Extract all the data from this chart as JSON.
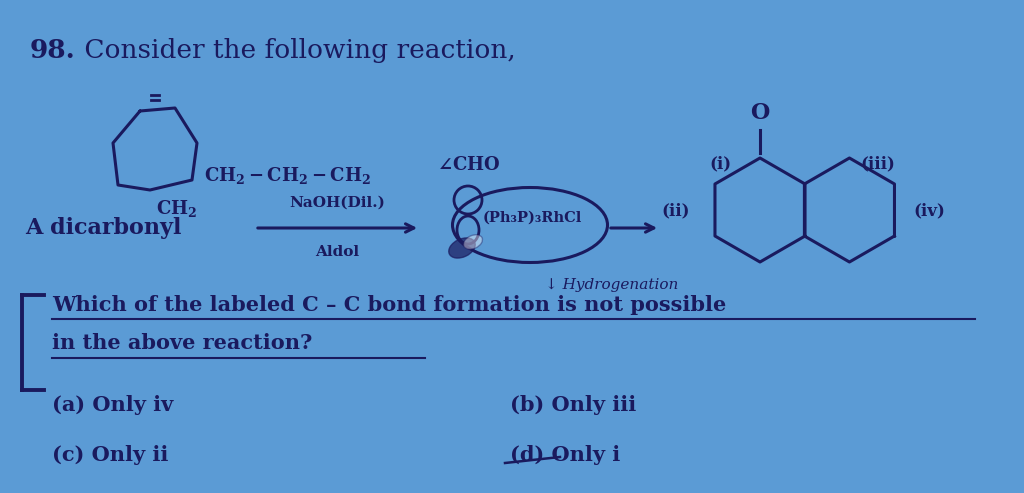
{
  "bg_color": "#5b9bd5",
  "text_color": "#1a1a5e",
  "title_num": "98.",
  "title_rest": " Consider the following reaction,",
  "reactant_label": "A dicarbonyl",
  "arrow_label_top": "NaOH(Dil.)",
  "arrow_label_bottom": "Aldol",
  "reagent2": "(Ph₃P)₃RhCl",
  "hydrogenation": "↓ Hydrogenation",
  "carbonyl_O": "O",
  "question_line1": "Which of the labeled C – C bond formation is not possible",
  "question_line2": "in the above reaction?",
  "opt_a": "(a) Only iv",
  "opt_b": "(b) Only iii",
  "opt_c": "(c) Only ii",
  "opt_d": "(d) Only i",
  "label_i": "(i)",
  "label_ii": "(ii)",
  "label_iii": "(iii)",
  "label_iv": "(iv)"
}
